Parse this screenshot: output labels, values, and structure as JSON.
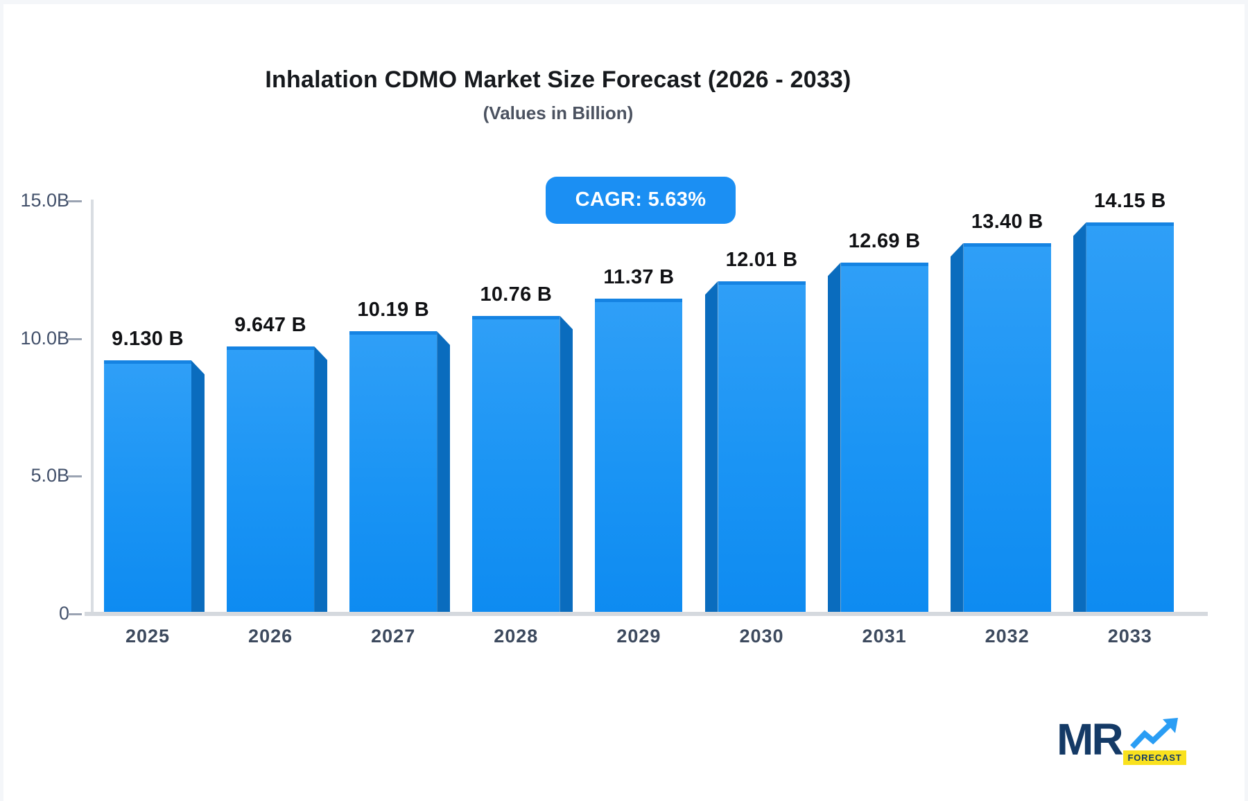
{
  "header": {
    "title": "Inhalation CDMO Market Size Forecast (2026 - 2033)",
    "subtitle": "(Values in Billion)",
    "cagr_badge": "CAGR: 5.63%"
  },
  "chart_data": {
    "type": "bar",
    "title": "Inhalation CDMO Market Size Forecast (2026 - 2033)",
    "subtitle": "(Values in Billion)",
    "annotation": "CAGR: 5.63%",
    "categories": [
      "2025",
      "2026",
      "2027",
      "2028",
      "2029",
      "2030",
      "2031",
      "2032",
      "2033"
    ],
    "values": [
      9.13,
      9.647,
      10.19,
      10.76,
      11.37,
      12.01,
      12.69,
      13.4,
      14.15
    ],
    "value_labels": [
      "9.130 B",
      "9.647 B",
      "10.19 B",
      "10.76 B",
      "11.37 B",
      "12.01 B",
      "12.69 B",
      "13.40 B",
      "14.15 B"
    ],
    "unit": "Billion",
    "xlabel": "",
    "ylabel": "",
    "ylim": [
      0,
      15
    ],
    "y_ticks": [
      {
        "value": 15,
        "label": "15.0B"
      },
      {
        "value": 10,
        "label": "10.0B"
      },
      {
        "value": 5,
        "label": "5.0B"
      },
      {
        "value": 0,
        "label": "0"
      }
    ],
    "grid": false,
    "legend": false,
    "bar_style": "3d-prism",
    "colors": {
      "bar_face_top": "#2f9ff7",
      "bar_face_bottom": "#0e8bf1",
      "bar_top_edge": "#1583e2",
      "bar_side": "#0a6cbe",
      "axis_line": "#d5d9de",
      "tick_text": "#42506a",
      "value_text": "#101114",
      "badge_background": "#1b8ff3",
      "badge_text": "#ffffff"
    }
  },
  "logo": {
    "brand": "MR",
    "sub_brand": "FORECAST",
    "icon": "trend-up-arrow-icon",
    "colors": {
      "navy": "#143a66",
      "yellow": "#f9e11e",
      "arrow_blue": "#2a9df4"
    }
  }
}
